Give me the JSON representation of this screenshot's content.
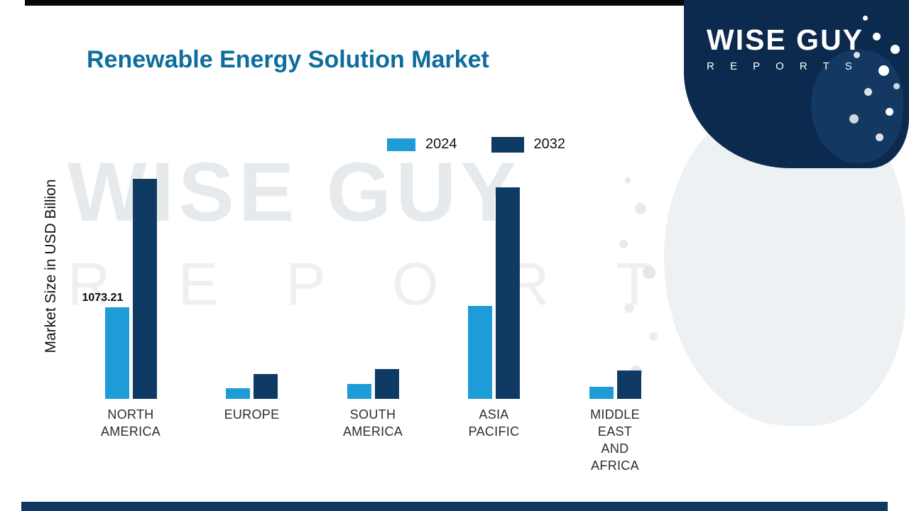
{
  "page": {
    "title": "Renewable Energy Solution Market"
  },
  "logo": {
    "name": "WISE GUY",
    "sub": "R E P O R T S"
  },
  "watermark": {
    "line1": "WISE GUY",
    "line2": "R E P O R T S"
  },
  "y_axis_label": "Market Size in USD Billion",
  "colors": {
    "title": "#0e6d9e",
    "series_2024": "#1e9cd7",
    "series_2032": "#0e3a63",
    "top_bar": "#07080c",
    "bottom_bar": "#0d3862",
    "logo_bg": "#0b2a4d",
    "watermark_gray": "#e7eaed"
  },
  "legend": {
    "items": [
      {
        "label": "2024",
        "color": "#1e9cd7"
      },
      {
        "label": "2032",
        "color": "#0e3a63"
      }
    ]
  },
  "chart_data": {
    "type": "bar",
    "title": "Renewable Energy Solution Market",
    "xlabel": "",
    "ylabel": "Market Size in USD Billion",
    "ylim": [
      0,
      2600
    ],
    "grid": false,
    "legend_position": "top-center",
    "categories": [
      "NORTH AMERICA",
      "EUROPE",
      "SOUTH AMERICA",
      "ASIA PACIFIC",
      "MIDDLE EAST AND AFRICA"
    ],
    "category_lines": [
      [
        "NORTH",
        "AMERICA"
      ],
      [
        "EUROPE"
      ],
      [
        "SOUTH",
        "AMERICA"
      ],
      [
        "ASIA",
        "PACIFIC"
      ],
      [
        "MIDDLE",
        "EAST",
        "AND",
        "AFRICA"
      ]
    ],
    "series": [
      {
        "name": "2024",
        "color": "#1e9cd7",
        "values": [
          1073.21,
          125,
          175,
          1090,
          140
        ]
      },
      {
        "name": "2032",
        "color": "#0e3a63",
        "values": [
          2580,
          290,
          350,
          2480,
          335
        ]
      }
    ],
    "data_labels": {
      "NORTH AMERICA": {
        "2024": "1073.21"
      }
    }
  }
}
